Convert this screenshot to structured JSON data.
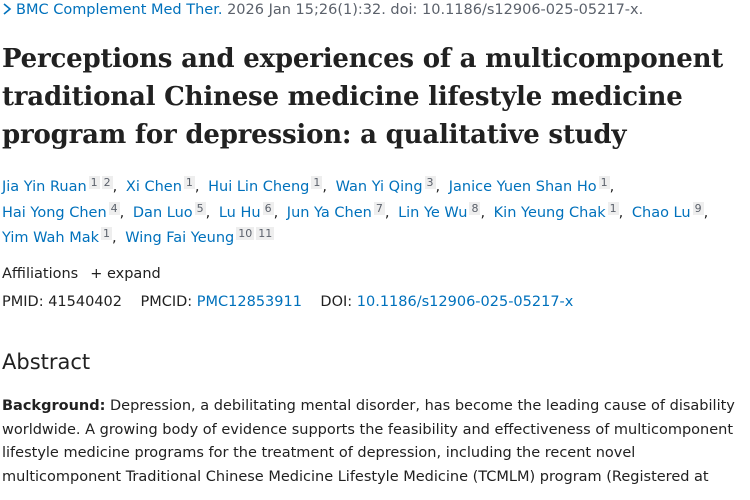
{
  "citation": {
    "journal": "BMC Complement Med Ther.",
    "details": "2026 Jan 15;26(1):32. doi: 10.1186/s12906-025-05217-x."
  },
  "title": "Perceptions and experiences of a multicomponent traditional Chinese medicine lifestyle medicine program for depression: a qualitative study",
  "author_separator": ",",
  "authors": [
    {
      "name": "Jia Yin Ruan",
      "affiliations": [
        "1",
        "2"
      ]
    },
    {
      "name": "Xi Chen",
      "affiliations": [
        "1"
      ]
    },
    {
      "name": "Hui Lin Cheng",
      "affiliations": [
        "1"
      ]
    },
    {
      "name": "Wan Yi Qing",
      "affiliations": [
        "3"
      ]
    },
    {
      "name": "Janice Yuen Shan Ho",
      "affiliations": [
        "1"
      ]
    },
    {
      "name": "Hai Yong Chen",
      "affiliations": [
        "4"
      ]
    },
    {
      "name": "Dan Luo",
      "affiliations": [
        "5"
      ]
    },
    {
      "name": "Lu Hu",
      "affiliations": [
        "6"
      ]
    },
    {
      "name": "Jun Ya Chen",
      "affiliations": [
        "7"
      ]
    },
    {
      "name": "Lin Ye Wu",
      "affiliations": [
        "8"
      ]
    },
    {
      "name": "Kin Yeung Chak",
      "affiliations": [
        "1"
      ]
    },
    {
      "name": "Chao Lu",
      "affiliations": [
        "9"
      ]
    },
    {
      "name": "Yim Wah Mak",
      "affiliations": [
        "1"
      ]
    },
    {
      "name": "Wing Fai Yeung",
      "affiliations": [
        "10",
        "11"
      ]
    }
  ],
  "affiliations_label": "Affiliations",
  "expand": "expand",
  "identifiers": {
    "pmid_label": "PMID:",
    "pmid": "41540402",
    "pmcid_label": "PMCID:",
    "pmcid": "PMC12853911",
    "doi_label": "DOI:",
    "doi": "10.1186/s12906-025-05217-x"
  },
  "abstract": {
    "heading": "Abstract",
    "background_label": "Background:",
    "background_text": "Depression, a debilitating mental disorder, has become the leading cause of disability worldwide. A growing body of evidence supports the feasibility and effectiveness of multicomponent lifestyle medicine programs for the treatment of depression, including the recent novel multicomponent Traditional Chinese Medicine Lifestyle Medicine (TCMLM) program (Registered at"
  }
}
